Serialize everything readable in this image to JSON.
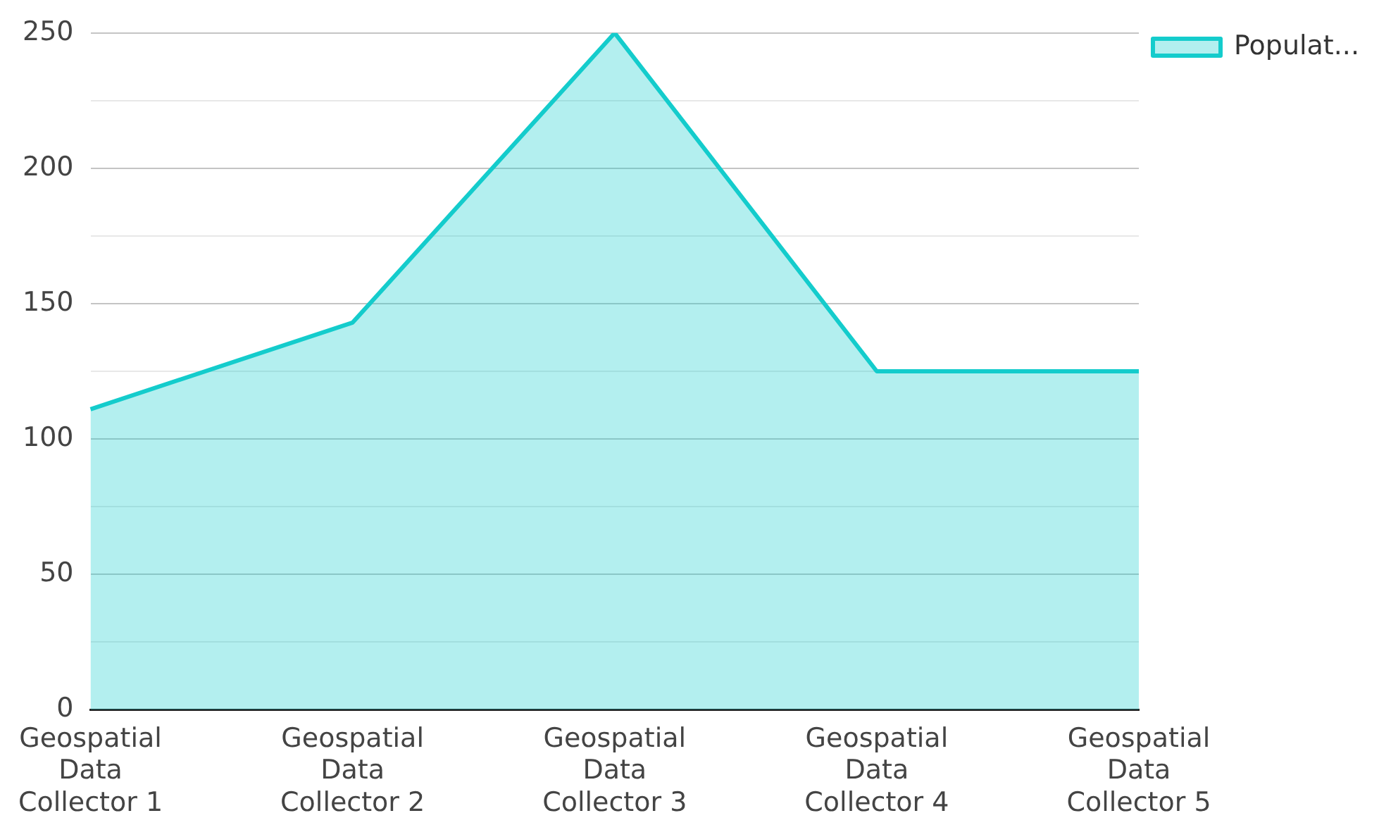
{
  "chart_data": {
    "type": "area",
    "categories": [
      "Geospatial Data Collector 1",
      "Geospatial Data Collector 2",
      "Geospatial Data Collector 3",
      "Geospatial Data Collector 4",
      "Geospatial Data Collector 5"
    ],
    "series": [
      {
        "name": "Populat...",
        "color": "#14cccc",
        "values": [
          111,
          143,
          250,
          125,
          125
        ]
      }
    ],
    "ylim": [
      0,
      250
    ],
    "yticks": [
      0,
      {
        "value": 25,
        "label": null
      },
      50,
      {
        "value": 75,
        "label": null
      },
      100,
      {
        "value": 125,
        "label": null
      },
      150,
      {
        "value": 175,
        "label": null
      },
      200,
      {
        "value": 225,
        "label": null
      },
      250
    ],
    "grid": "y",
    "legend": "top right"
  }
}
